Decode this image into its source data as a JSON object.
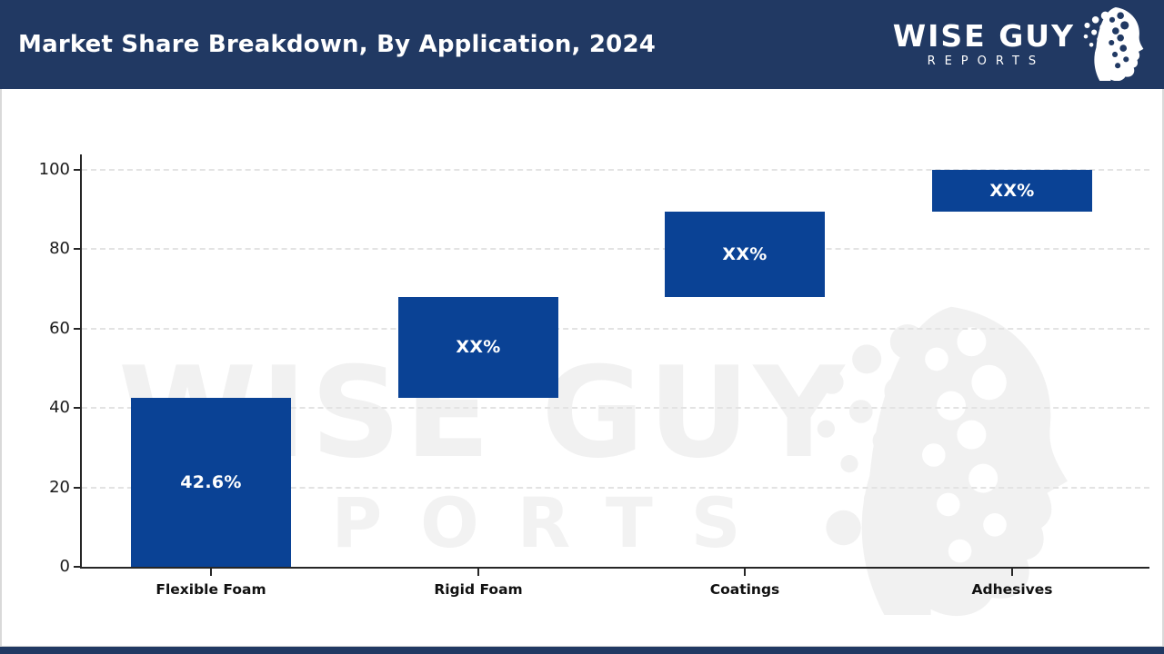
{
  "header": {
    "title": "Market Share Breakdown, By Application, 2024",
    "logo": {
      "line1": "WISE GUY",
      "line2": "REPORTS"
    }
  },
  "watermark": {
    "line1": "WISE GUY",
    "line2": "REPORTS"
  },
  "footer": {},
  "colors": {
    "header_navy": "#213963",
    "bar_blue": "#0a4295",
    "gridline": "#e3e3e3",
    "axis": "#262626",
    "watermark_gray": "#f1f1f1"
  },
  "chart_data": {
    "type": "bar",
    "subtype": "waterfall",
    "title": "Market Share Breakdown, By Application, 2024",
    "xlabel": "",
    "ylabel": "",
    "categories": [
      "Flexible Foam",
      "Rigid Foam",
      "Coatings",
      "Adhesives"
    ],
    "segments": [
      {
        "category": "Flexible Foam",
        "start": 0,
        "end": 42.6,
        "value": 42.6,
        "label": "42.6%"
      },
      {
        "category": "Rigid Foam",
        "start": 42.6,
        "end": 68.0,
        "value": 25.4,
        "label": "XX%"
      },
      {
        "category": "Coatings",
        "start": 68.0,
        "end": 89.5,
        "value": 21.5,
        "label": "XX%"
      },
      {
        "category": "Adhesives",
        "start": 89.5,
        "end": 100,
        "value": 10.5,
        "label": "XX%"
      }
    ],
    "yticks": [
      0,
      20,
      40,
      60,
      80,
      100
    ],
    "ylim": [
      0,
      104
    ],
    "grid": "horizontal-dashed",
    "legend": "none",
    "bar_color": "#0a4295",
    "bar_label_color": "#ffffff"
  }
}
